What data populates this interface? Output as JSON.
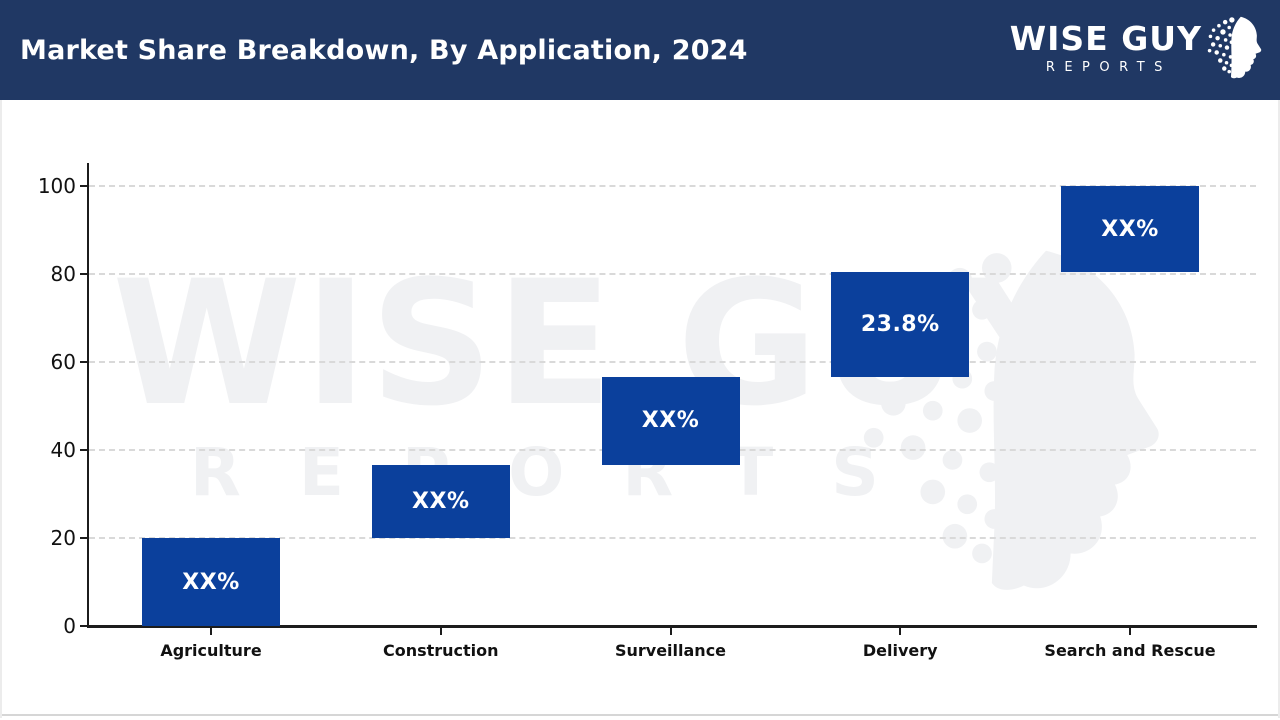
{
  "header": {
    "logo": {
      "line1": "WISE GUY",
      "line2": "REPORTS"
    }
  },
  "watermark": {
    "line1": "WISE GUY",
    "line2": "REPORTS"
  },
  "colors": {
    "header_bg": "#203864",
    "bar": "#0b409c",
    "grid": "#d9d9d9",
    "axis": "#1c1c1c",
    "watermark": "#f0f1f3",
    "title_text": "#ffffff",
    "bar_label_text": "#ffffff"
  },
  "chart_data": {
    "type": "bar",
    "subtype": "waterfall",
    "title": "Market Share Breakdown, By Application, 2024",
    "categories": [
      "Agriculture",
      "Construction",
      "Surveillance",
      "Delivery",
      "Search and Rescue"
    ],
    "bars": [
      {
        "category": "Agriculture",
        "start": 0,
        "end": 20,
        "label": "XX%"
      },
      {
        "category": "Construction",
        "start": 20,
        "end": 36.6,
        "label": "XX%"
      },
      {
        "category": "Surveillance",
        "start": 36.6,
        "end": 56.6,
        "label": "XX%"
      },
      {
        "category": "Delivery",
        "start": 56.6,
        "end": 80.4,
        "label": "23.8%"
      },
      {
        "category": "Search and Rescue",
        "start": 80.4,
        "end": 100,
        "label": "XX%"
      }
    ],
    "ylim": [
      0,
      105
    ],
    "yticks": [
      0,
      20,
      40,
      60,
      80,
      100
    ],
    "xlabel": "",
    "ylabel": "",
    "grid": "horizontal-dashed",
    "legend": false
  }
}
